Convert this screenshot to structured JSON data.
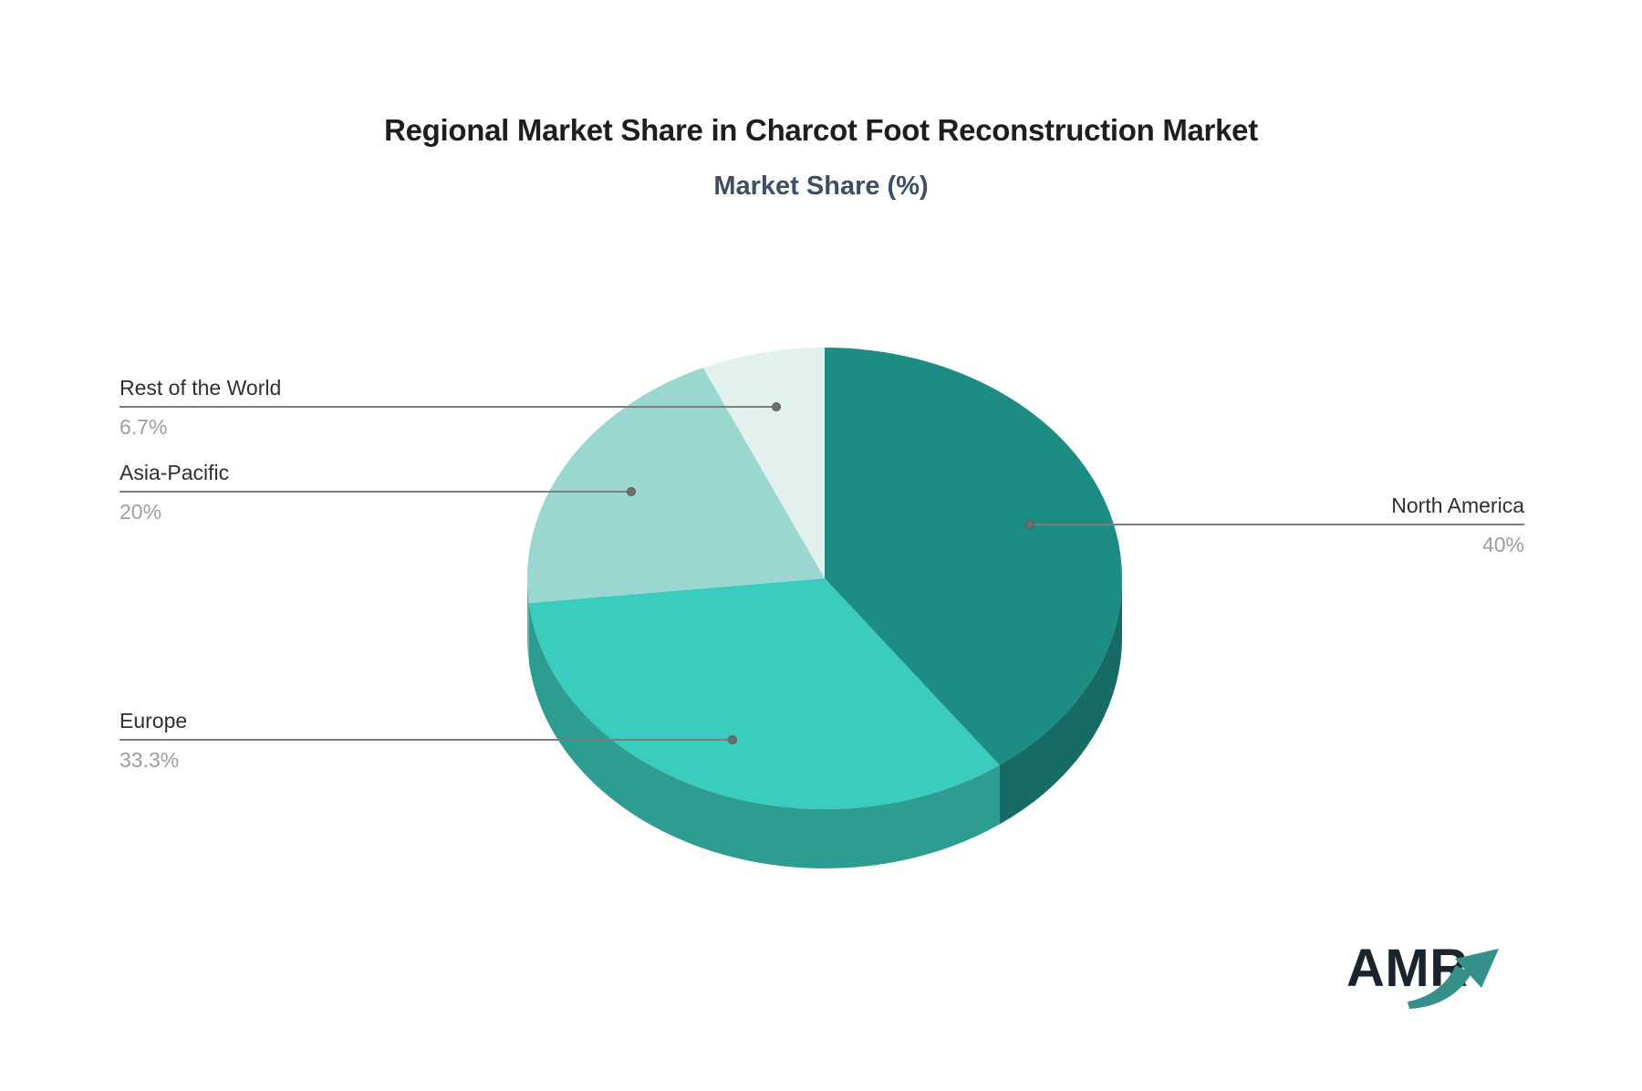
{
  "title": "Regional Market Share in Charcot Foot Reconstruction Market",
  "subtitle": "Market Share (%)",
  "chart_data": {
    "type": "pie",
    "style": "3d",
    "title": "Regional Market Share in Charcot Foot Reconstruction Market",
    "subtitle": "Market Share (%)",
    "unit": "%",
    "start_angle_deg": 0,
    "direction": "clockwise",
    "legend_position": "callout-labels",
    "slices": [
      {
        "label": "North America",
        "value": 40,
        "display": "40%",
        "color": "#1d8c82"
      },
      {
        "label": "Europe",
        "value": 33.3,
        "display": "33.3%",
        "color": "#3accbe"
      },
      {
        "label": "Asia-Pacific",
        "value": 20,
        "display": "20%",
        "color": "#99d7d0"
      },
      {
        "label": "Rest of the World",
        "value": 6.7,
        "display": "6.7%",
        "color": "#e2f0ee"
      }
    ],
    "label_text_color": "#2f2f2f",
    "value_text_color": "#9c9fa0",
    "leader_line_color": "#7d7d7d"
  },
  "logo": {
    "text": "AMR",
    "text_color": "#1a232e",
    "arrow_color": "#359089"
  }
}
